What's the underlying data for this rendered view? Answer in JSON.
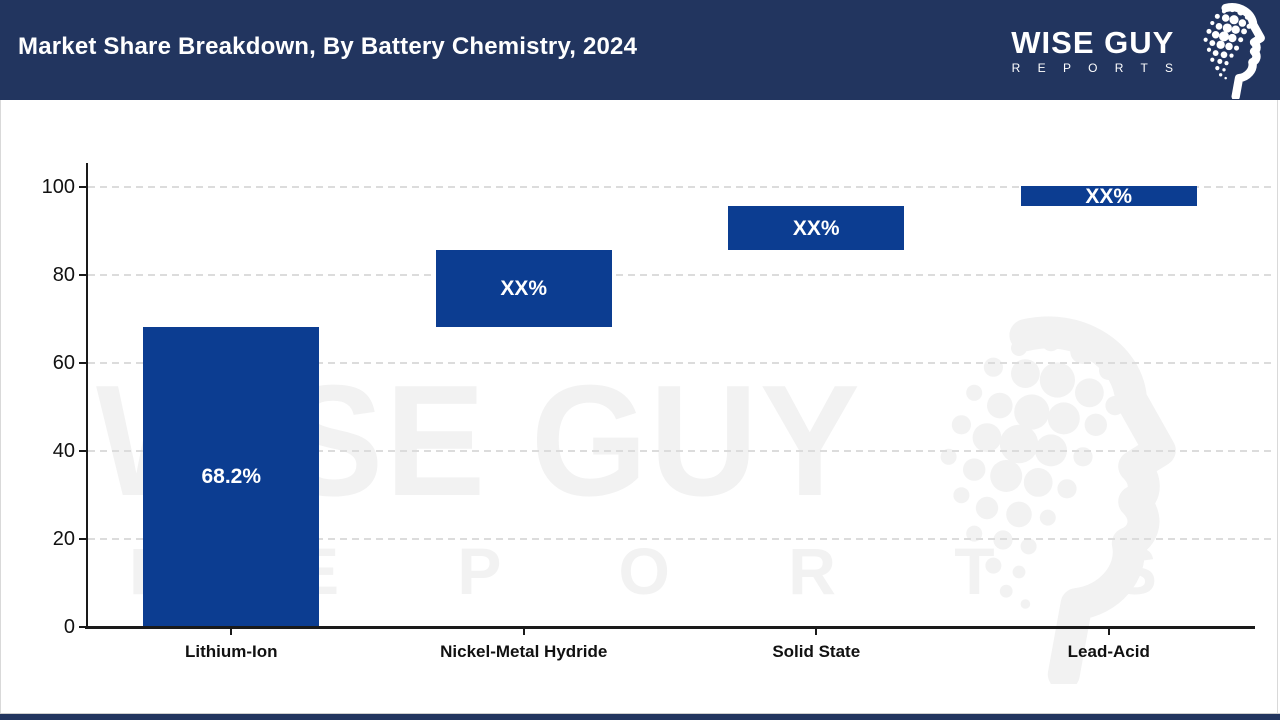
{
  "header": {
    "title": "Market Share Breakdown, By Battery Chemistry, 2024",
    "logo": {
      "name_line": "WISE GUY",
      "reports_line": "R E P O R T S"
    }
  },
  "watermark": {
    "name_line": "WISE GUY",
    "reports_line": "R E P O R T S"
  },
  "chart_data": {
    "type": "bar",
    "subtype": "waterfall",
    "title": "Market Share Breakdown, By Battery Chemistry, 2024",
    "categories": [
      "Lithium-Ion",
      "Nickel-Metal Hydride",
      "Solid State",
      "Lead-Acid"
    ],
    "bars": [
      {
        "category": "Lithium-Ion",
        "start": 0,
        "end": 68.2,
        "label": "68.2%"
      },
      {
        "category": "Nickel-Metal Hydride",
        "start": 68.2,
        "end": 85.7,
        "label": "XX%"
      },
      {
        "category": "Solid State",
        "start": 85.7,
        "end": 95.6,
        "label": "XX%"
      },
      {
        "category": "Lead-Acid",
        "start": 95.6,
        "end": 100.2,
        "label": "XX%"
      }
    ],
    "xlabel": "",
    "ylabel": "",
    "ylim": [
      0,
      105
    ],
    "yticks": [
      0,
      20,
      40,
      60,
      80,
      100
    ],
    "grid": true,
    "gridstyle": "dashed",
    "legend": false,
    "colors": {
      "bar": "#0c3d91",
      "bar_label": "#ffffff",
      "axis": "#1a1a1a",
      "gridline": "#dcdcdc",
      "header_bg": "#22355f",
      "watermark": "#f2f2f2"
    }
  }
}
